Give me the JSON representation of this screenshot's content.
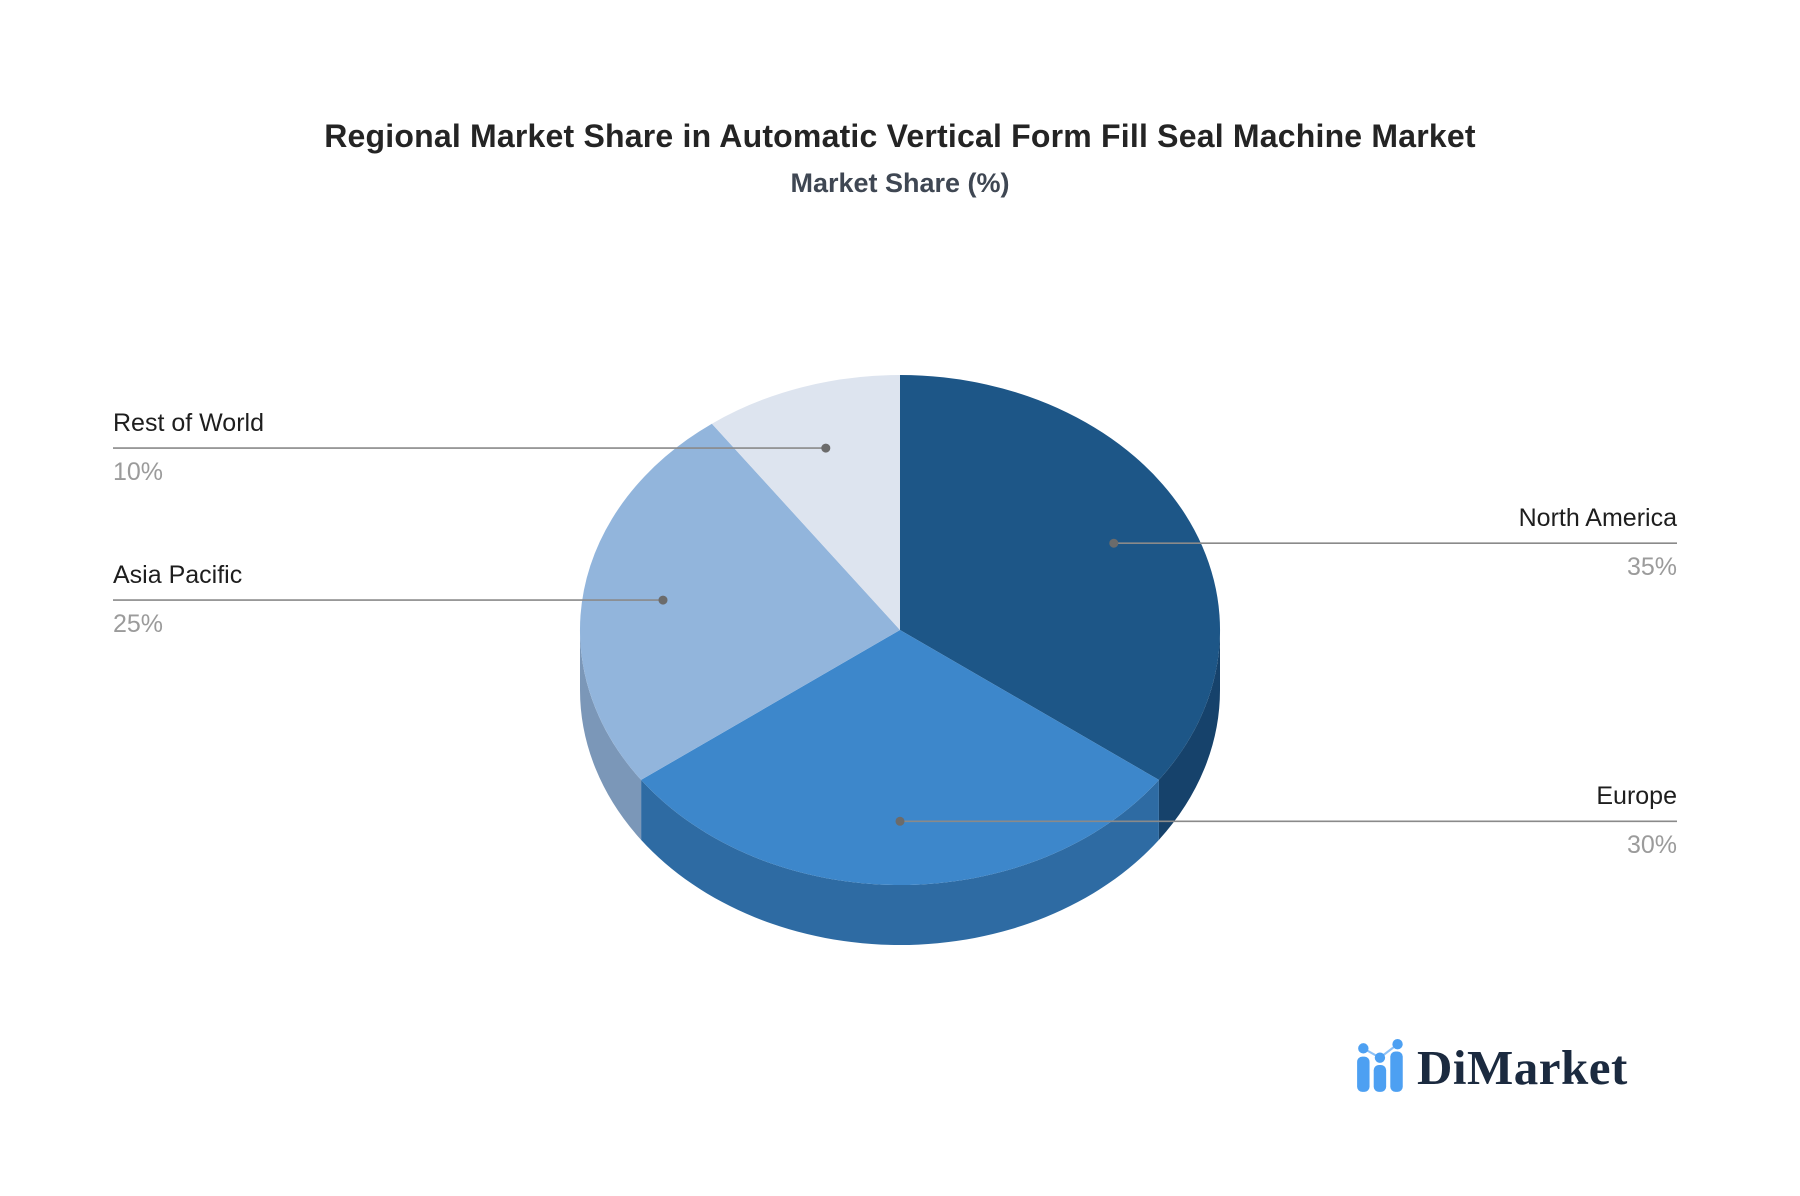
{
  "title": "Regional Market Share in Automatic Vertical Form Fill Seal Machine Market",
  "subtitle": "Market Share (%)",
  "brand": {
    "name": "DiMarket",
    "icon": "bar-chart-logo-icon",
    "text_color": "#1b2a3f",
    "icon_color": "#4da0f2"
  },
  "chart_data": {
    "type": "pie",
    "style": "3d",
    "title": "Regional Market Share in Automatic Vertical Form Fill Seal Machine Market",
    "subtitle": "Market Share (%)",
    "unit": "%",
    "start_angle_deg": 0,
    "direction": "clockwise",
    "legend_position": "leader-lines",
    "grid": false,
    "slices": [
      {
        "label": "North America",
        "value": 35,
        "value_label": "35%",
        "color": "#1d5687",
        "side_color": "#16426b",
        "label_side": "right"
      },
      {
        "label": "Europe",
        "value": 30,
        "value_label": "30%",
        "color": "#3d87cb",
        "side_color": "#2e6ba3",
        "label_side": "right"
      },
      {
        "label": "Asia Pacific",
        "value": 25,
        "value_label": "25%",
        "color": "#92b5dc",
        "side_color": "#7b97b8",
        "label_side": "left"
      },
      {
        "label": "Rest of World",
        "value": 10,
        "value_label": "10%",
        "color": "#dde4ef",
        "side_color": "#c5cfdd",
        "label_side": "left"
      }
    ],
    "label_colors": {
      "name": "#1e1e1e",
      "value": "#9b9b9b",
      "leader_line": "#8a8a8a",
      "leader_dot": "#6b6b6b"
    }
  }
}
